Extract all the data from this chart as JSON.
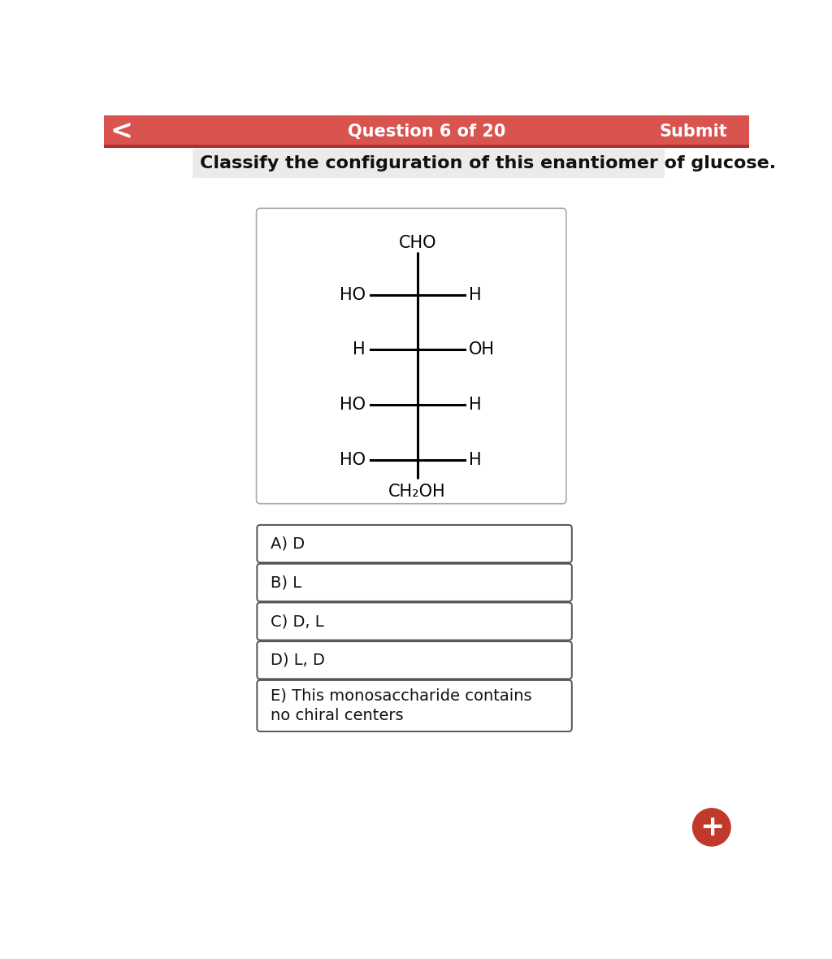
{
  "header_color": "#d9534f",
  "header_text": "Question 6 of 20",
  "header_submit": "Submit",
  "header_back": "<",
  "bg_color": "#ffffff",
  "question_text": "Classify the configuration of this enantiomer of glucose.",
  "question_bg": "#ebebeb",
  "molecule": {
    "top_label": "CHO",
    "bottom_label": "CH₂OH",
    "rows": [
      {
        "left": "HO",
        "right": "H"
      },
      {
        "left": "H",
        "right": "OH"
      },
      {
        "left": "HO",
        "right": "H"
      },
      {
        "left": "HO",
        "right": "H"
      }
    ]
  },
  "choices": [
    "A) D",
    "B) L",
    "C) D, L",
    "D) L, D",
    "E) This monosaccharide contains\nno chiral centers"
  ],
  "plus_button_color": "#c0392b",
  "box_bg": "#ffffff",
  "box_border": "#555555",
  "text_color": "#111111",
  "question_fontsize": 16,
  "header_fontsize": 15,
  "choice_fontsize": 14,
  "mol_fontsize": 15
}
